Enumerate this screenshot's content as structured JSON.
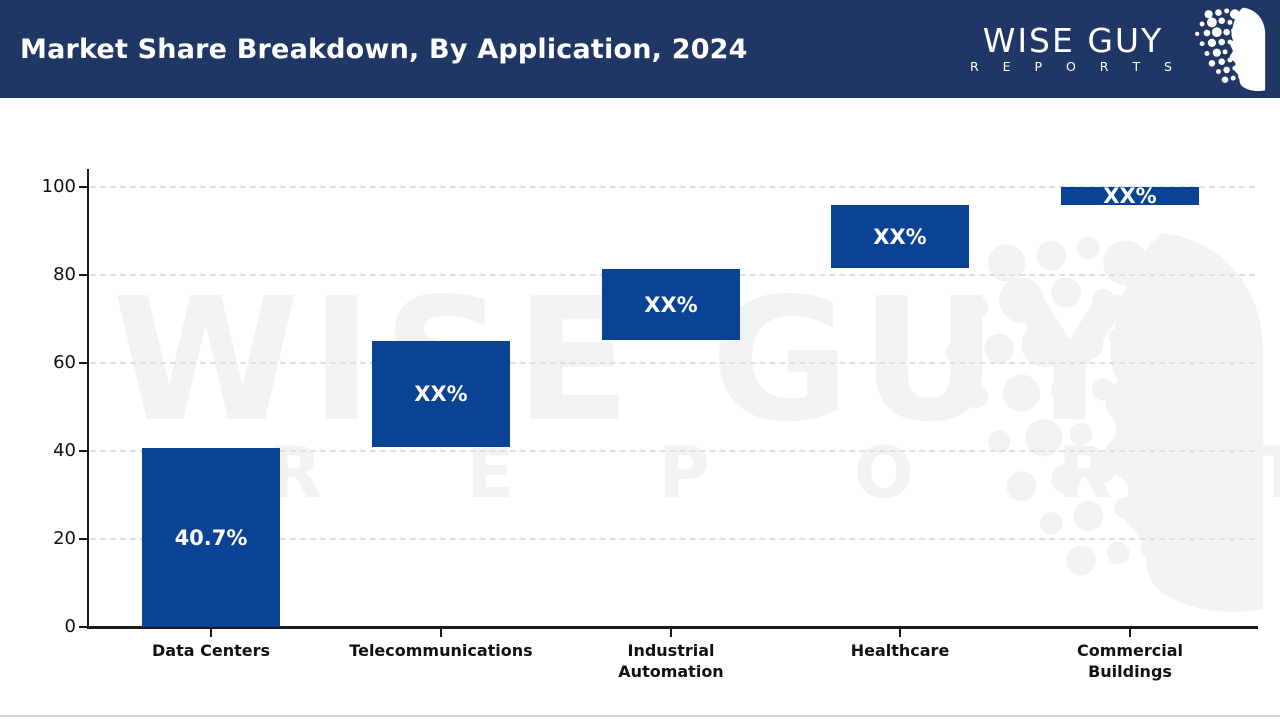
{
  "header": {
    "title": "Market Share Breakdown, By Application, 2024",
    "logo": {
      "name": "WISE GUY",
      "sub": "R E P O R T S"
    }
  },
  "watermark": {
    "line1": "WISE GUY",
    "line2": "R E P O R T S"
  },
  "colors": {
    "header_bg": "#203766",
    "bar": "#0a4296",
    "grid": "#e0e0e0",
    "axis": "#1a1a1a",
    "title_text": "#ffffff",
    "bar_label_text": "#ffffff",
    "watermark": "#f2f2f2"
  },
  "chart_data": {
    "type": "bar",
    "subtype": "waterfall",
    "title": "Market Share Breakdown, By Application, 2024",
    "categories": [
      "Data Centers",
      "Telecommunications",
      "Industrial Automation",
      "Healthcare",
      "Commercial Buildings"
    ],
    "category_lines": [
      [
        "Data Centers"
      ],
      [
        "Telecommunications"
      ],
      [
        "Industrial",
        "Automation"
      ],
      [
        "Healthcare"
      ],
      [
        "Commercial",
        "Buildings"
      ]
    ],
    "segments": [
      {
        "category": "Data Centers",
        "start": 0,
        "end": 40.7,
        "label": "40.7%"
      },
      {
        "category": "Telecommunications",
        "start": 41.0,
        "end": 65.0,
        "label": "XX%"
      },
      {
        "category": "Industrial Automation",
        "start": 65.2,
        "end": 81.4,
        "label": "XX%"
      },
      {
        "category": "Healthcare",
        "start": 81.6,
        "end": 96.0,
        "label": "XX%"
      },
      {
        "category": "Commercial Buildings",
        "start": 96.0,
        "end": 100.0,
        "label": "XX%"
      }
    ],
    "yticks": [
      0,
      20,
      40,
      60,
      80,
      100
    ],
    "ylim": [
      0,
      104
    ],
    "xlabel": "",
    "ylabel": "",
    "grid": "horizontal-dashed",
    "legend": "none",
    "bar_color": "#0a4296"
  }
}
